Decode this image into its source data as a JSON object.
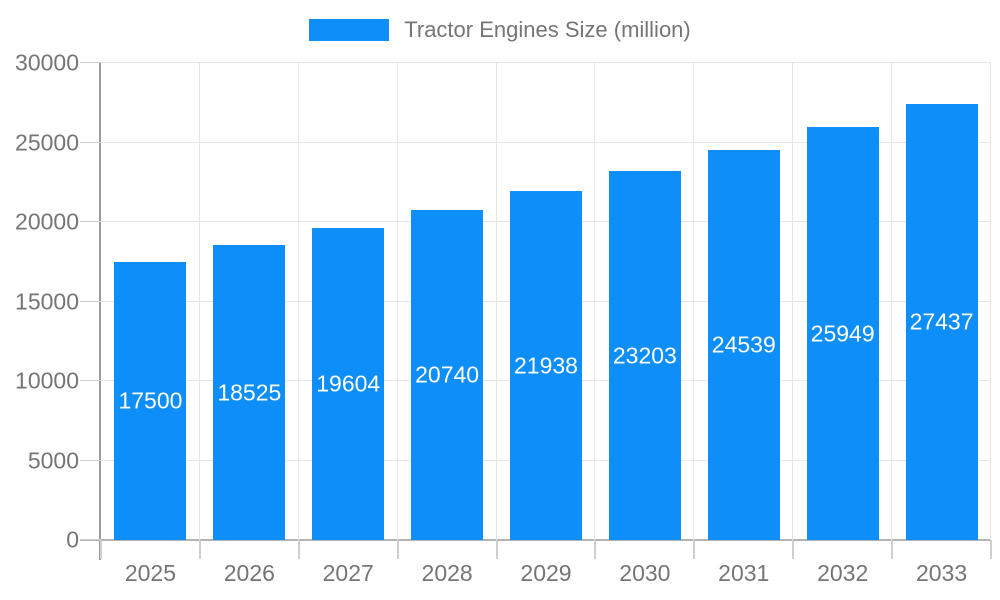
{
  "legend": {
    "label": "Tractor Engines Size (million)"
  },
  "chart_data": {
    "type": "bar",
    "title": "Tractor Engines Size (million)",
    "categories": [
      "2025",
      "2026",
      "2027",
      "2028",
      "2029",
      "2030",
      "2031",
      "2032",
      "2033"
    ],
    "values": [
      17500,
      18525,
      19604,
      20740,
      21938,
      23203,
      24539,
      25949,
      27437
    ],
    "bar_labels": [
      "17500",
      "18525",
      "19604",
      "20740",
      "21938",
      "23203",
      "24539",
      "25949",
      "27437"
    ],
    "xlabel": "",
    "ylabel": "",
    "ylim": [
      0,
      30000
    ],
    "yticks": [
      0,
      5000,
      10000,
      15000,
      20000,
      25000,
      30000
    ],
    "ytick_labels": [
      "0",
      "5000",
      "10000",
      "15000",
      "20000",
      "25000",
      "30000"
    ],
    "grid": true,
    "legend_position": "top",
    "colors": {
      "bar": "#0d8ef8",
      "axis_text": "#757575",
      "bar_label_text": "#ffffff",
      "gridline": "#e6e6e6",
      "y_axis_line": "#9b9b9b",
      "baseline": "#b3b3b3",
      "tick": "#cfcfcf",
      "background": "#ffffff"
    }
  }
}
